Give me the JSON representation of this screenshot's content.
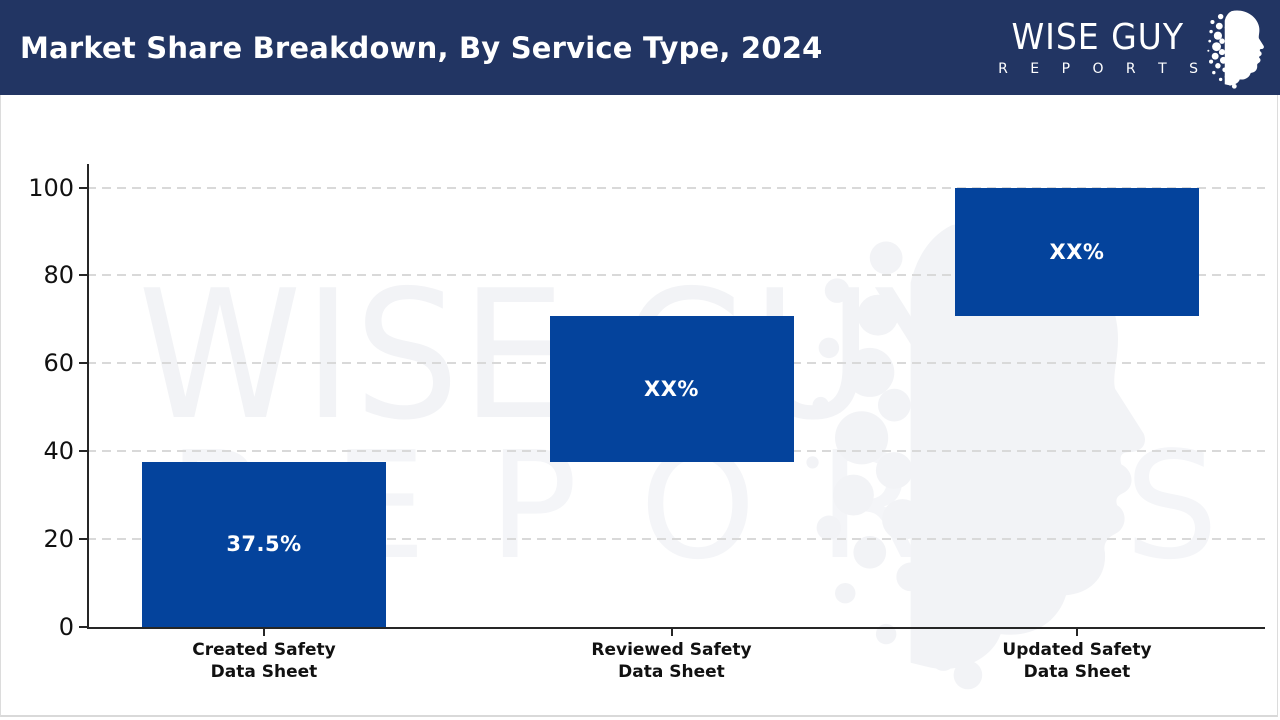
{
  "header": {
    "title": "Market Share Breakdown, By Service Type, 2024",
    "bg_color": "#223563",
    "logo": {
      "primary": "WISE GUY",
      "secondary": "R E P O R T S"
    }
  },
  "watermark": {
    "primary": "WISE GUY",
    "secondary": "REPORTS"
  },
  "chart_data": {
    "type": "bar",
    "variant": "floating-waterfall",
    "title": "Market Share Breakdown, By Service Type, 2024",
    "categories": [
      "Created Safety\nData Sheet",
      "Reviewed Safety\nData Sheet",
      "Updated Safety\nData Sheet"
    ],
    "segments": [
      {
        "category": "Created Safety Data Sheet",
        "start": 0,
        "end": 37.5,
        "label": "37.5%"
      },
      {
        "category": "Reviewed Safety Data Sheet",
        "start": 37.5,
        "end": 70.7,
        "label": "XX%"
      },
      {
        "category": "Updated Safety Data Sheet",
        "start": 70.7,
        "end": 100,
        "label": "XX%"
      }
    ],
    "ylim": [
      0,
      105
    ],
    "yticks": [
      0,
      20,
      40,
      60,
      80,
      100
    ],
    "grid": "horizontal-dashed",
    "legend": "none",
    "bar_color": "#04439c",
    "bar_label_color": "#ffffff",
    "axis_color": "#262626",
    "gridline_color": "#d9d9d9",
    "tick_label_color": "#111111"
  }
}
